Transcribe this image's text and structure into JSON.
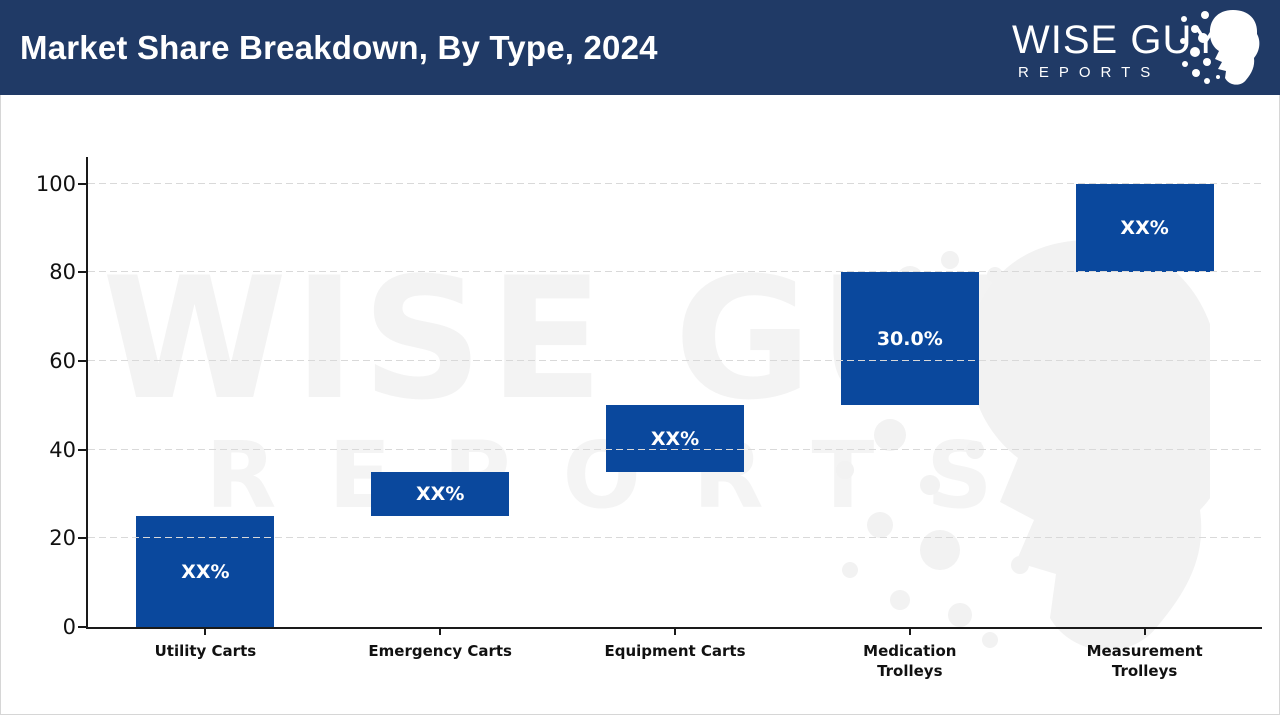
{
  "header": {
    "title": "Market Share Breakdown, By Type, 2024",
    "logo": {
      "line1": "WISE GUY",
      "line2": "REPORTS"
    }
  },
  "watermark": {
    "line1": "WISE GUY",
    "line2": "REPORTS"
  },
  "colors": {
    "header_bg": "#203a66",
    "bar": "#0a489d",
    "bar_label_text": "#ffffff",
    "grid": "#d9d9d9",
    "axis": "#1a1a1a",
    "watermark": "#f3f3f3"
  },
  "chart_data": {
    "type": "bar",
    "subtype": "floating-waterfall",
    "title": "Market Share Breakdown, By Type, 2024",
    "categories": [
      "Utility Carts",
      "Emergency Carts",
      "Equipment Carts",
      "Medication Trolleys",
      "Measurement Trolleys"
    ],
    "bars": [
      {
        "category": "Utility Carts",
        "start": 0,
        "end": 25,
        "value": 25,
        "label": "XX%"
      },
      {
        "category": "Emergency Carts",
        "start": 25,
        "end": 35,
        "value": 10,
        "label": "XX%"
      },
      {
        "category": "Equipment Carts",
        "start": 35,
        "end": 50,
        "value": 15,
        "label": "XX%"
      },
      {
        "category": "Medication Trolleys",
        "start": 50,
        "end": 80,
        "value": 30,
        "label": "30.0%"
      },
      {
        "category": "Measurement Trolleys",
        "start": 80,
        "end": 100,
        "value": 20,
        "label": "XX%"
      }
    ],
    "xlabel": "",
    "ylabel": "",
    "yticks": [
      0,
      20,
      40,
      60,
      80,
      100
    ],
    "ylim": [
      0,
      106
    ],
    "grid": "horizontal-dashed",
    "legend": "none"
  }
}
